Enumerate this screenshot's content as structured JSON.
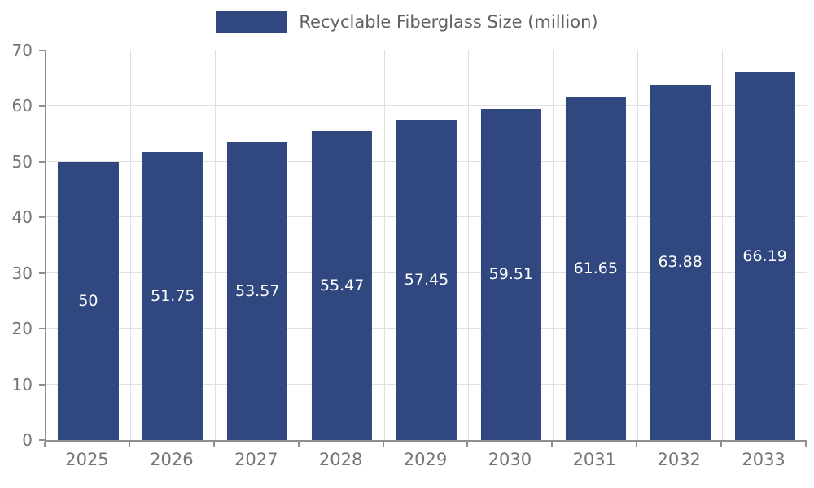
{
  "chart_data": {
    "type": "bar",
    "title": "Recyclable Fiberglass Size (million)",
    "categories": [
      "2025",
      "2026",
      "2027",
      "2028",
      "2029",
      "2030",
      "2031",
      "2032",
      "2033"
    ],
    "values": [
      50,
      51.75,
      53.57,
      55.47,
      57.45,
      59.51,
      61.65,
      63.88,
      66.19
    ],
    "value_labels": [
      "50",
      "51.75",
      "53.57",
      "55.47",
      "57.45",
      "59.51",
      "61.65",
      "63.88",
      "66.19"
    ],
    "xlabel": "",
    "ylabel": "",
    "ylim": [
      0,
      70
    ],
    "ytick_step": 10,
    "yticks": [
      "0",
      "10",
      "20",
      "30",
      "40",
      "50",
      "60",
      "70"
    ],
    "grid": true,
    "legend": {
      "label": "Recyclable Fiberglass Size (million)",
      "position": "top-center"
    },
    "colors": {
      "bar": "#30487F",
      "bar_label": "#FFFFFF",
      "axis_line": "#8F8F8F",
      "grid_line": "#E0E0E0",
      "tick_label": "#757575",
      "legend_text": "#616161",
      "background": "#FFFFFF"
    }
  }
}
